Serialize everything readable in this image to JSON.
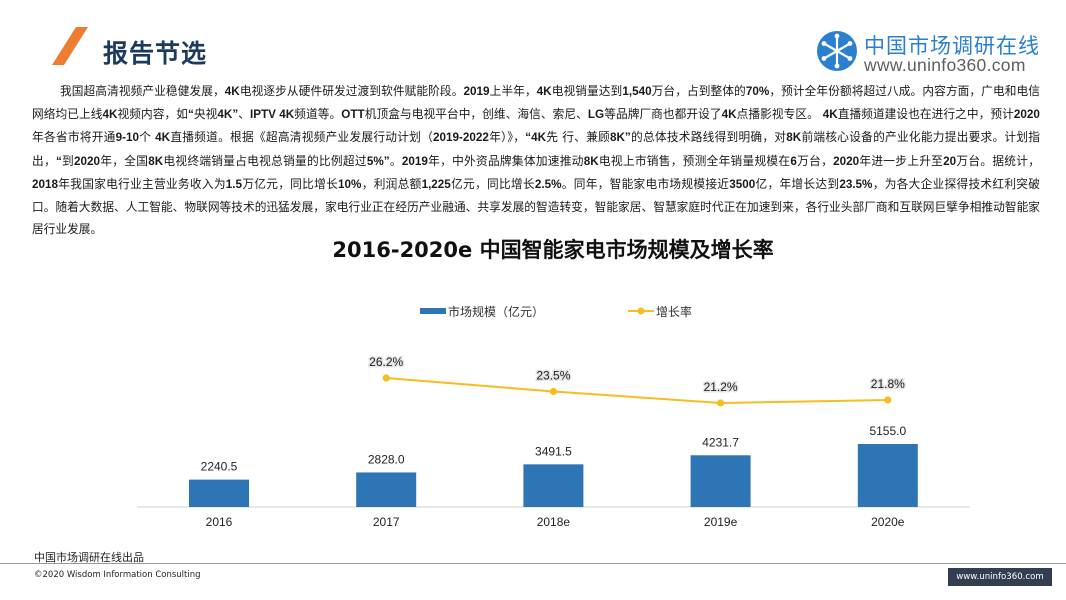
{
  "header": {
    "title": "报告节选",
    "accent_color": "#ed7d31",
    "title_color": "#1b3a5c"
  },
  "logo": {
    "icon": "snowflake-logo-icon",
    "name_cn": "中国市场调研在线",
    "url": "www.uninfo360.com",
    "brand_color": "#2a7fcf"
  },
  "body": {
    "paragraph_html": "我国超高清视频产业稳健发展，<b>4K</b>电视逐步从硬件研发过渡到软件赋能阶段。<b>2019</b>上半年，<b>4K</b>电视销量达到<b>1,540</b>万台，占到整体的<b>70%</b>，预计全年份额将超过八成。内容方面，广电和电信网络均已上线<b>4K</b>视频内容，如<b>“</b>央视<b>4K”</b>、<b>IPTV 4K</b>频道等。<b>OTT</b>机顶盒与电视平台中，创维、海信、索尼、<b>LG</b>等品牌厂商也都开设了<b>4K</b>点播影视专区。 <b>4K</b>直播频道建设也在进行之中，预计<b>2020</b>年各省市将开通<b>9-10</b>个 <b>4K</b>直播频道。根据《超高清视频产业发展行动计划（<b>2019-2022</b>年）》，<b>“4K</b>先 行、兼顾<b>8K”</b>的总体技术路线得到明确，对<b>8K</b>前端核心设备的产业化能力提出要求。计划指出，<b>“</b>到<b>2020</b>年，全国<b>8K</b>电视终端销量占电视总销量的比例超过<b>5%”</b>。<b>2019</b>年，中外资品牌集体加速推动<b>8K</b>电视上市销售，预测全年销量规模在<b>6</b>万台，<b>2020</b>年进一步上升至<b>20</b>万台。据统计，<b>2018</b>年我国家电行业主营业务收入为<b>1.5</b>万亿元，同比增长<b>10%</b>，利润总额<b>1,225</b>亿元，同比增长<b>2.5%</b>。同年，智能家电市场规模接近<b>3500</b>亿，年增长达到<b>23.5%</b>，为各大企业探得技术红利突破口。随着大数据、人工智能、物联网等技术的迅猛发展，家电行业正在经历产业融通、共享发展的智造转变，智能家居、智慧家庭时代正在加速到来，各行业头部厂商和互联网巨擘争相推动智能家居行业发展。"
  },
  "chart_data": {
    "type": "bar",
    "title": "2016-2020e 中国智能家电市场规模及增长率",
    "xlabel": "",
    "ylabel": "",
    "categories": [
      "2016",
      "2017",
      "2018e",
      "2019e",
      "2020e"
    ],
    "series": [
      {
        "name": "市场规模（亿元）",
        "type": "bar",
        "color": "#2e75b6",
        "values": [
          2240.5,
          2828.0,
          3491.5,
          4231.7,
          5155.0
        ],
        "labels": [
          "2240.5",
          "2828.0",
          "3491.5",
          "4231.7",
          "5155.0"
        ]
      },
      {
        "name": "增长率",
        "type": "line",
        "color": "#f5be1e",
        "values": [
          null,
          26.2,
          23.5,
          21.2,
          21.8
        ],
        "labels": [
          "",
          "26.2%",
          "23.5%",
          "21.2%",
          "21.8%"
        ]
      }
    ],
    "ylim_bar": [
      0,
      5155.0
    ],
    "ylim_line": [
      15,
      30
    ],
    "legend": "top-center",
    "grid": false
  },
  "footer": {
    "producer": "中国市场调研在线出品",
    "copyright": "©2020 Wisdom Information Consulting",
    "url_badge": "www.uninfo360.com"
  }
}
